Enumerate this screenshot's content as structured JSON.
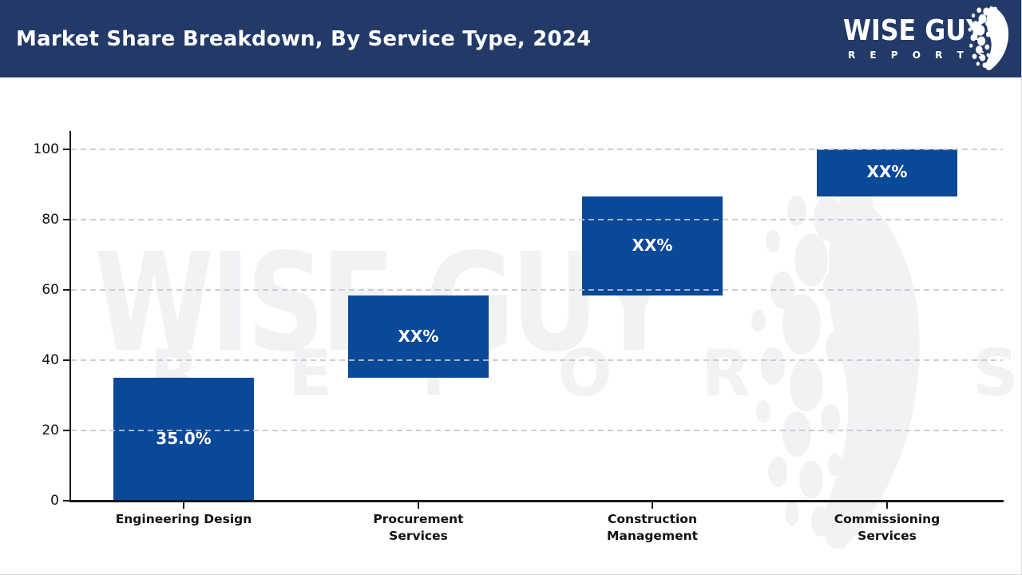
{
  "header": {
    "title": "Market Share Breakdown, By Service Type, 2024",
    "logo": {
      "name": "WISE GUY",
      "subtitle": "R E P O R T S"
    }
  },
  "watermark": {
    "name": "WISE GUY",
    "subtitle": "R E P O R T S"
  },
  "colors": {
    "header_bg": "#233a68",
    "bar": "#0a4898",
    "axis": "#1a1a1a",
    "grid": "#c6c6ca",
    "bar_label": "#ffffff",
    "watermark": "#f1f2f4"
  },
  "chart_data": {
    "type": "bar",
    "subtype": "waterfall",
    "title": "Market Share Breakdown, By Service Type, 2024",
    "xlabel": "",
    "ylabel": "",
    "ylim": [
      0,
      100
    ],
    "yticks": [
      0,
      20,
      40,
      60,
      80,
      100
    ],
    "grid": "horizontal-dashed-over-bars",
    "legend": "none",
    "categories": [
      "Engineering Design",
      "Procurement Services",
      "Construction Management",
      "Commissioning Services"
    ],
    "category_lines": [
      [
        "Engineering Design"
      ],
      [
        "Procurement",
        "Services"
      ],
      [
        "Construction",
        "Management"
      ],
      [
        "Commissioning",
        "Services"
      ]
    ],
    "segments": [
      {
        "category": "Engineering Design",
        "start": 0,
        "end": 35,
        "value": 35.0,
        "label": "35.0%"
      },
      {
        "category": "Procurement Services",
        "start": 35,
        "end": 58.3,
        "value": 23.3,
        "label": "XX%"
      },
      {
        "category": "Construction Management",
        "start": 58.3,
        "end": 86.6,
        "value": 28.3,
        "label": "XX%"
      },
      {
        "category": "Commissioning Services",
        "start": 86.6,
        "end": 100,
        "value": 13.4,
        "label": "XX%"
      }
    ]
  }
}
